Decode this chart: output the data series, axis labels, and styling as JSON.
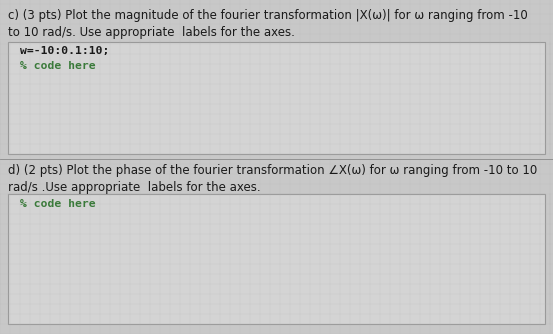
{
  "bg_color": "#c8c8c8",
  "box_color": "#d4d4d4",
  "text_color": "#1a1a1a",
  "green_color": "#3a7a3a",
  "code_color": "#1a1a1a",
  "section_c_line1": "c) (3 pts) Plot the magnitude of the fourier transformation |X(ω)| for ω ranging from -10",
  "section_c_line2": "to 10 rad/s. Use appropriate  labels for the axes.",
  "code_c_line1": "w=-10:0.1:10;",
  "code_c_line2": "% code here",
  "section_d_line1": "d) (2 pts) Plot the phase of the fourier transformation ∠X(ω) for ω ranging from -10 to 10",
  "section_d_line2": "rad/s .Use appropriate  labels for the axes.",
  "code_d_line1": "% code here",
  "fontsize_text": 8.5,
  "fontsize_code": 8.2,
  "grid_color": "#b8b8b8",
  "separator_color": "#888888"
}
